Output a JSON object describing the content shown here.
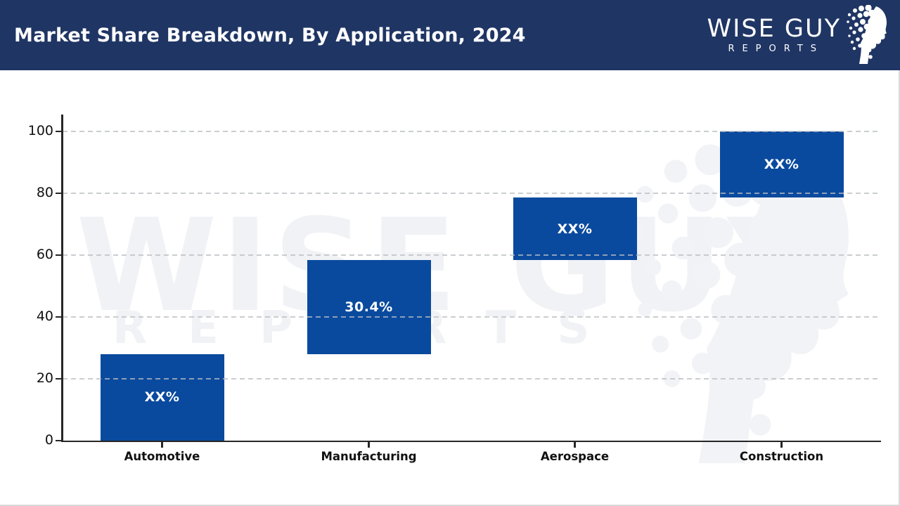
{
  "header": {
    "title": "Market Share Breakdown, By Application, 2024",
    "logo": {
      "line1": "WISE GUY",
      "line2": "REPORTS"
    }
  },
  "watermark": {
    "line1": "WISE GUY",
    "line2": "REPORTS"
  },
  "chart_data": {
    "type": "bar",
    "subtype": "waterfall",
    "title": "Market Share Breakdown, By Application, 2024",
    "categories": [
      "Automotive",
      "Manufacturing",
      "Aerospace",
      "Construction"
    ],
    "segments": [
      {
        "category": "Automotive",
        "start": 0,
        "end": 28,
        "label": "XX%"
      },
      {
        "category": "Manufacturing",
        "start": 28,
        "end": 58.4,
        "label": "30.4%"
      },
      {
        "category": "Aerospace",
        "start": 58.4,
        "end": 78.6,
        "label": "XX%"
      },
      {
        "category": "Construction",
        "start": 78.6,
        "end": 100,
        "label": "XX%"
      }
    ],
    "ylim": [
      0,
      105
    ],
    "yticks": [
      0,
      20,
      40,
      60,
      80,
      100
    ],
    "xlabel": "",
    "ylabel": "",
    "grid": "horizontal-dashed",
    "legend": "none",
    "bar_color": "#0a4a9e",
    "bar_label_color": "#ffffff"
  },
  "colors": {
    "header_bg": "#1f3564",
    "bar": "#0a4a9e",
    "axis": "#262626",
    "gridline": "#d8d8d8",
    "watermark": "#f1f2f5",
    "page_bg": "#ffffff"
  }
}
